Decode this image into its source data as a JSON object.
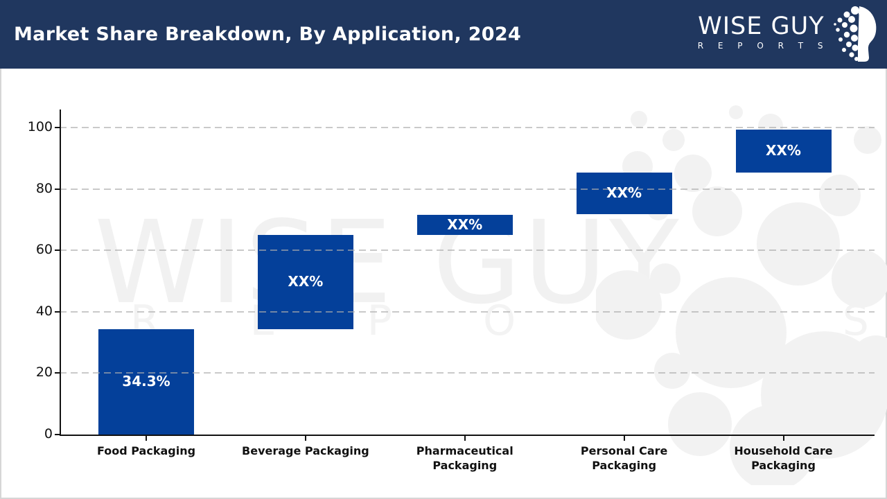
{
  "header": {
    "title": "Market Share Breakdown, By Application, 2024",
    "bg_color": "#20375f",
    "logo": {
      "line1": "WISE GUY",
      "line2": "R E P O R T S"
    }
  },
  "watermark": {
    "line1": "WISE GUY",
    "line2": "R E P O R T S"
  },
  "chart_data": {
    "type": "bar",
    "subtype": "waterfall (floating stacked segments, one per category)",
    "title": "Market Share Breakdown, By Application, 2024",
    "xlabel": "",
    "ylabel": "",
    "ylim": [
      0,
      100
    ],
    "y_ticks": [
      0,
      20,
      40,
      60,
      80,
      100
    ],
    "grid": "horizontal dashed gridlines drawn over bars",
    "legend": "none",
    "bar_color": "#04409a",
    "bar_label_color": "#ffffff",
    "categories": [
      "Food Packaging",
      "Beverage Packaging",
      "Pharmaceutical\nPackaging",
      "Personal Care\nPackaging",
      "Household Care\nPackaging"
    ],
    "segments": [
      {
        "category": "Food Packaging",
        "start": 0,
        "end": 34.3,
        "label": "34.3%"
      },
      {
        "category": "Beverage Packaging",
        "start": 34.3,
        "end": 64.9,
        "label": "XX%"
      },
      {
        "category": "Pharmaceutical Packaging",
        "start": 64.9,
        "end": 71.6,
        "label": "XX%"
      },
      {
        "category": "Personal Care Packaging",
        "start": 71.8,
        "end": 85.3,
        "label": "XX%"
      },
      {
        "category": "Household Care Packaging",
        "start": 85.4,
        "end": 99.4,
        "label": "XX%"
      }
    ]
  }
}
